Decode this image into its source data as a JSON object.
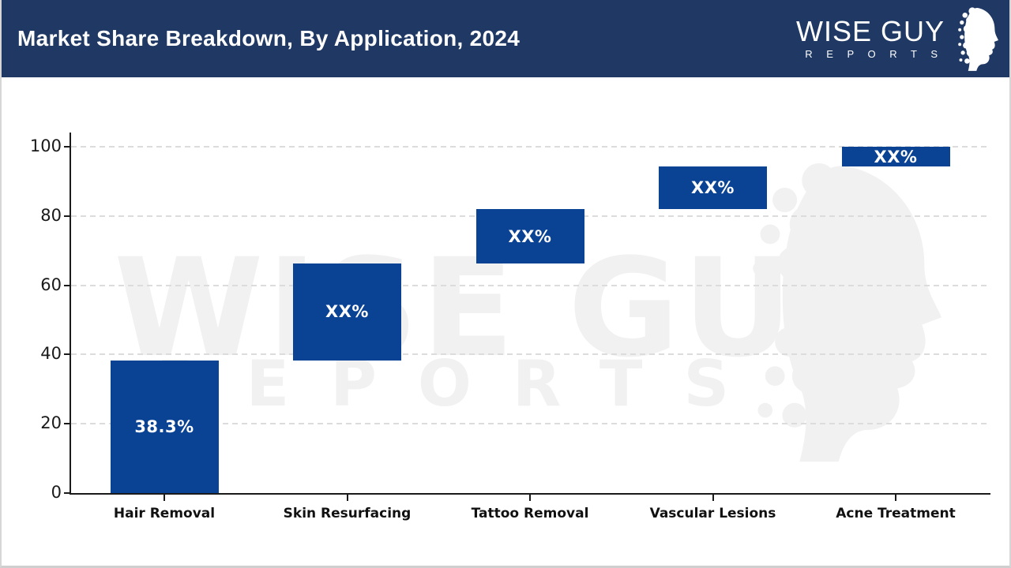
{
  "header": {
    "title": "Market Share Breakdown, By Application, 2024",
    "logo": {
      "line1": "WISE GUY",
      "line2": "R E P O R T S"
    }
  },
  "watermark": {
    "line1": "WISE GUY",
    "line2": "REPORTS"
  },
  "colors": {
    "header_bg": "#1f3864",
    "bar": "#0a4294",
    "bar_label": "#ffffff",
    "axis": "#1a1a1a",
    "gridline": "#dcdcdc",
    "watermark": "#f1f1f1"
  },
  "icons": {
    "logo_face": "wiseguy-face-icon",
    "watermark_face": "wiseguy-face-watermark-icon"
  },
  "chart_data": {
    "type": "bar",
    "subtype": "waterfall",
    "title": "Market Share Breakdown, By Application, 2024",
    "categories": [
      "Hair Removal",
      "Skin Resurfacing",
      "Tattoo Removal",
      "Vascular Lesions",
      "Acne Treatment"
    ],
    "segments": [
      {
        "category": "Hair Removal",
        "label": "38.3%",
        "start": 0,
        "end": 38.3,
        "value": 38.3
      },
      {
        "category": "Skin Resurfacing",
        "label": "XX%",
        "start": 38.3,
        "end": 66.3,
        "value": 28.0
      },
      {
        "category": "Tattoo Removal",
        "label": "XX%",
        "start": 66.3,
        "end": 81.9,
        "value": 15.6
      },
      {
        "category": "Vascular Lesions",
        "label": "XX%",
        "start": 81.9,
        "end": 94.2,
        "value": 12.3
      },
      {
        "category": "Acne Treatment",
        "label": "XX%",
        "start": 94.2,
        "end": 100,
        "value": 5.8
      }
    ],
    "yticks": [
      0,
      20,
      40,
      60,
      80,
      100
    ],
    "ylim": [
      0,
      104
    ],
    "xlabel": "",
    "ylabel": "",
    "grid": "horizontal-dashed",
    "legend": "none",
    "bar_color": "#0a4294",
    "label_color": "#ffffff"
  }
}
